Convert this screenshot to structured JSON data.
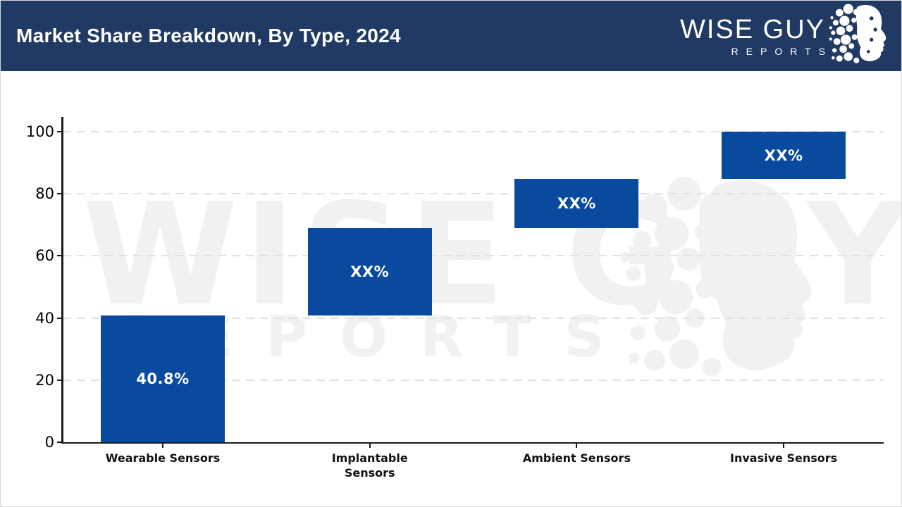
{
  "header": {
    "title": "Market Share Breakdown, By Type, 2024",
    "logo": {
      "wordmark": "WISE GUY",
      "subtitle": "REPORTS"
    }
  },
  "watermark": {
    "wordmark": "WISE GUY",
    "subtitle": "REPORTS"
  },
  "chart_data": {
    "type": "bar",
    "variant": "waterfall",
    "title": "Market Share Breakdown, By Type, 2024",
    "categories": [
      "Wearable Sensors",
      "Implantable\nSensors",
      "Ambient Sensors",
      "Invasive Sensors"
    ],
    "bars": [
      {
        "category": "Wearable Sensors",
        "start": 0,
        "end": 40.8,
        "value_label": "40.8%"
      },
      {
        "category": "Implantable Sensors",
        "start": 40.8,
        "end": 69.0,
        "value_label": "XX%"
      },
      {
        "category": "Ambient Sensors",
        "start": 69.0,
        "end": 84.7,
        "value_label": "XX%"
      },
      {
        "category": "Invasive Sensors",
        "start": 84.7,
        "end": 100,
        "value_label": "XX%"
      }
    ],
    "ylim": [
      0,
      100
    ],
    "yticks": [
      0,
      20,
      40,
      60,
      80,
      100
    ],
    "grid": "horizontal dashed",
    "legend": "none",
    "bar_color": "#0a4a9e",
    "value_label_color": "#ffffff",
    "header_color": "#213a64",
    "watermark_color": "#f0f1f3"
  }
}
